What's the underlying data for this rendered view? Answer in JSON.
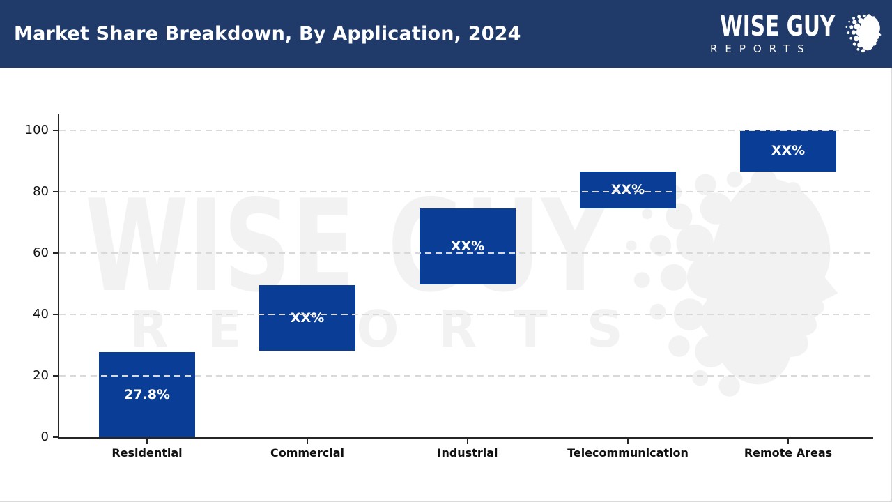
{
  "header": {
    "title": "Market Share Breakdown, By Application, 2024",
    "background_color": "#203a69",
    "logo": {
      "wordmark": "WISE GUY",
      "subtext": "REPORTS"
    }
  },
  "watermark": {
    "wordmark": "WISE GUY",
    "subtext": "REPORTS"
  },
  "chart_data": {
    "type": "bar",
    "variant": "floating-waterfall",
    "title": "Market Share Breakdown, By Application, 2024",
    "categories": [
      "Residential",
      "Commercial",
      "Industrial",
      "Telecommunication",
      "Remote Areas"
    ],
    "bars": [
      {
        "category": "Residential",
        "start": 0,
        "end": 27.8,
        "label": "27.8%"
      },
      {
        "category": "Commercial",
        "start": 28.1,
        "end": 49.5,
        "label": "XX%"
      },
      {
        "category": "Industrial",
        "start": 49.7,
        "end": 74.5,
        "label": "XX%"
      },
      {
        "category": "Telecommunication",
        "start": 74.5,
        "end": 86.5,
        "label": "XX%"
      },
      {
        "category": "Remote Areas",
        "start": 86.5,
        "end": 100,
        "label": "XX%"
      }
    ],
    "ylim": [
      0,
      100
    ],
    "yticks": [
      0,
      20,
      40,
      60,
      80,
      100
    ],
    "xlabel": "",
    "ylabel": "",
    "grid": "horizontal-dashed",
    "legend": "none",
    "bar_color": "#0a3e96",
    "bar_label_color": "#ffffff",
    "axis_color": "#262626",
    "gridline_color": "#d9d9d9"
  }
}
